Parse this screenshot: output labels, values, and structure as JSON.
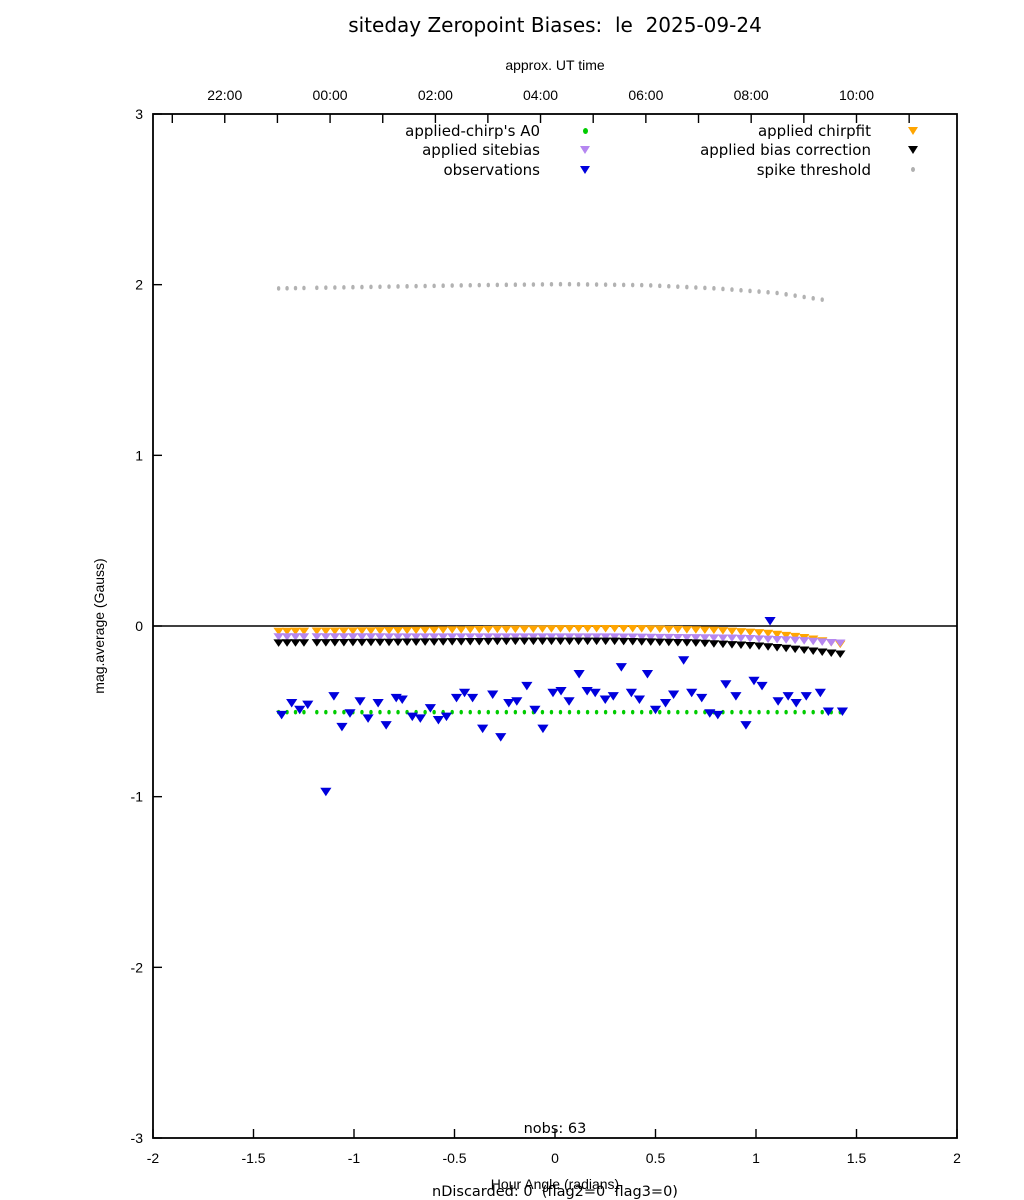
{
  "title": "siteday Zeropoint Biases:  le  2025-09-24",
  "legend": {
    "left": [
      {
        "label": "applied-chirp's A0",
        "marker": "dot",
        "color": "#00cc00"
      },
      {
        "label": "applied sitebias",
        "marker": "tri",
        "color": "#b587f0"
      },
      {
        "label": "observations",
        "marker": "tri",
        "color": "#0000dd"
      }
    ],
    "right": [
      {
        "label": "applied chirpfit",
        "marker": "tri",
        "color": "#ffa500"
      },
      {
        "label": "applied bias correction",
        "marker": "tri",
        "color": "#000000"
      },
      {
        "label": "spike threshold",
        "marker": "smalldot",
        "color": "#b0b0b0"
      }
    ]
  },
  "chart_data": {
    "type": "scatter",
    "title": "siteday Zeropoint Biases:  le  2025-09-24",
    "xlabel": "Hour Angle (radians)",
    "x2label": "approx. UT time",
    "ylabel": "mag.average (Gauss)",
    "xlim": [
      -2,
      2
    ],
    "ylim": [
      -3,
      3
    ],
    "grid": "off",
    "zero_line": true,
    "x_ticks": [
      -2,
      -1.5,
      -1,
      -0.5,
      0,
      0.5,
      1,
      1.5,
      2
    ],
    "x_tick_labels": [
      "-2",
      "-1.5",
      "-1",
      "-0.5",
      "0",
      "0.5",
      "1",
      "1.5",
      "2"
    ],
    "y_ticks": [
      3,
      2,
      1,
      0,
      -1,
      -2,
      -3
    ],
    "y_tick_labels": [
      "3",
      "2",
      "1",
      "0",
      "-1",
      "-2",
      "-3"
    ],
    "top_ticks": [
      {
        "ha": -1.904,
        "label": ""
      },
      {
        "ha": -1.643,
        "label": "22:00"
      },
      {
        "ha": -1.381,
        "label": ""
      },
      {
        "ha": -1.119,
        "label": "00:00"
      },
      {
        "ha": -0.857,
        "label": ""
      },
      {
        "ha": -0.595,
        "label": "02:00"
      },
      {
        "ha": -0.334,
        "label": ""
      },
      {
        "ha": -0.072,
        "label": "04:00"
      },
      {
        "ha": 0.19,
        "label": ""
      },
      {
        "ha": 0.452,
        "label": "06:00"
      },
      {
        "ha": 0.714,
        "label": ""
      },
      {
        "ha": 0.976,
        "label": "08:00"
      },
      {
        "ha": 1.238,
        "label": ""
      },
      {
        "ha": 1.5,
        "label": "10:00"
      },
      {
        "ha": 1.762,
        "label": ""
      }
    ],
    "x_grid": {
      "groups": [
        {
          "start": -1.375,
          "step": 0.042,
          "count": 4
        },
        {
          "start": -1.185,
          "step": 0.0449,
          "count": 59
        }
      ]
    },
    "series": [
      {
        "name": "applied-chirp's A0",
        "marker": "dot",
        "color": "#00cc00",
        "y_const": -0.505
      },
      {
        "name": "applied chirpfit",
        "marker": "tri",
        "color": "#ffa500",
        "anchors": [
          [
            -1.38,
            -0.03
          ],
          [
            -0.9,
            -0.027
          ],
          [
            -0.4,
            -0.02
          ],
          [
            0.1,
            -0.014
          ],
          [
            0.4,
            -0.014
          ],
          [
            0.8,
            -0.024
          ],
          [
            1.05,
            -0.04
          ],
          [
            1.25,
            -0.068
          ],
          [
            1.43,
            -0.108
          ]
        ]
      },
      {
        "name": "applied sitebias",
        "marker": "tri",
        "color": "#b587f0",
        "anchors": [
          [
            -1.38,
            -0.062
          ],
          [
            -0.5,
            -0.063
          ],
          [
            0.3,
            -0.063
          ],
          [
            0.9,
            -0.07
          ],
          [
            1.2,
            -0.082
          ],
          [
            1.43,
            -0.1
          ]
        ]
      },
      {
        "name": "applied bias correction",
        "marker": "tri",
        "color": "#000000",
        "anchors": [
          [
            -1.38,
            -0.098
          ],
          [
            -0.8,
            -0.094
          ],
          [
            -0.2,
            -0.088
          ],
          [
            0.3,
            -0.088
          ],
          [
            0.7,
            -0.098
          ],
          [
            1.0,
            -0.115
          ],
          [
            1.2,
            -0.135
          ],
          [
            1.43,
            -0.165
          ]
        ]
      },
      {
        "name": "observations",
        "marker": "tri",
        "marker_size": "large",
        "color": "#0000dd",
        "points": [
          [
            -1.36,
            -0.52
          ],
          [
            -1.31,
            -0.45
          ],
          [
            -1.27,
            -0.49
          ],
          [
            -1.23,
            -0.46
          ],
          [
            -1.14,
            -0.97
          ],
          [
            -1.1,
            -0.41
          ],
          [
            -1.06,
            -0.59
          ],
          [
            -1.02,
            -0.51
          ],
          [
            -0.97,
            -0.44
          ],
          [
            -0.93,
            -0.54
          ],
          [
            -0.88,
            -0.45
          ],
          [
            -0.84,
            -0.58
          ],
          [
            -0.79,
            -0.42
          ],
          [
            -0.76,
            -0.43
          ],
          [
            -0.71,
            -0.53
          ],
          [
            -0.67,
            -0.54
          ],
          [
            -0.62,
            -0.48
          ],
          [
            -0.58,
            -0.55
          ],
          [
            -0.54,
            -0.53
          ],
          [
            -0.49,
            -0.42
          ],
          [
            -0.45,
            -0.39
          ],
          [
            -0.41,
            -0.42
          ],
          [
            -0.36,
            -0.6
          ],
          [
            -0.31,
            -0.4
          ],
          [
            -0.27,
            -0.65
          ],
          [
            -0.23,
            -0.45
          ],
          [
            -0.19,
            -0.44
          ],
          [
            -0.14,
            -0.35
          ],
          [
            -0.1,
            -0.49
          ],
          [
            -0.06,
            -0.6
          ],
          [
            -0.01,
            -0.39
          ],
          [
            0.03,
            -0.38
          ],
          [
            0.07,
            -0.44
          ],
          [
            0.12,
            -0.28
          ],
          [
            0.16,
            -0.38
          ],
          [
            0.2,
            -0.39
          ],
          [
            0.25,
            -0.43
          ],
          [
            0.29,
            -0.41
          ],
          [
            0.33,
            -0.24
          ],
          [
            0.38,
            -0.39
          ],
          [
            0.42,
            -0.43
          ],
          [
            0.46,
            -0.28
          ],
          [
            0.5,
            -0.49
          ],
          [
            0.55,
            -0.45
          ],
          [
            0.59,
            -0.4
          ],
          [
            0.64,
            -0.2
          ],
          [
            0.68,
            -0.39
          ],
          [
            0.73,
            -0.42
          ],
          [
            0.77,
            -0.51
          ],
          [
            0.81,
            -0.52
          ],
          [
            0.85,
            -0.34
          ],
          [
            0.9,
            -0.41
          ],
          [
            0.95,
            -0.58
          ],
          [
            0.99,
            -0.32
          ],
          [
            1.03,
            -0.35
          ],
          [
            1.07,
            0.03
          ],
          [
            1.11,
            -0.44
          ],
          [
            1.16,
            -0.41
          ],
          [
            1.2,
            -0.45
          ],
          [
            1.25,
            -0.41
          ],
          [
            1.32,
            -0.39
          ],
          [
            1.36,
            -0.5
          ],
          [
            1.43,
            -0.5
          ]
        ]
      },
      {
        "name": "spike threshold",
        "marker": "dot",
        "color": "#b2b2b2",
        "max_x": 1.37,
        "anchors": [
          [
            -1.38,
            1.978
          ],
          [
            -0.9,
            1.987
          ],
          [
            -0.4,
            1.997
          ],
          [
            0.05,
            2.003
          ],
          [
            0.45,
            1.997
          ],
          [
            0.8,
            1.978
          ],
          [
            1.1,
            1.952
          ],
          [
            1.37,
            1.905
          ]
        ]
      }
    ],
    "annotations": {
      "line1": "nobs: 63",
      "line2": "nDiscarded: 0  (flag2=0  flag3=0)"
    },
    "legend_position": "top-inside-two-columns"
  }
}
